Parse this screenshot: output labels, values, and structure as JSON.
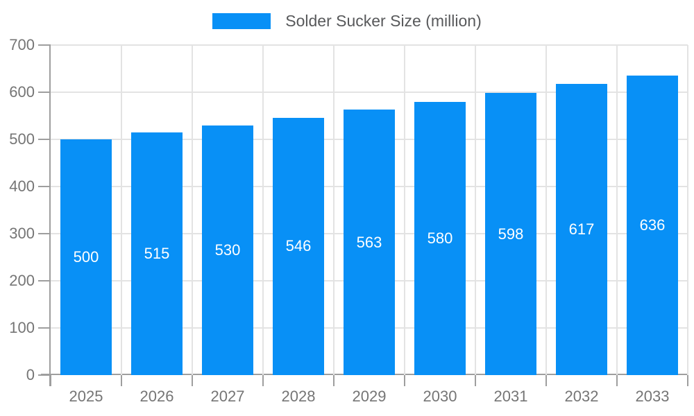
{
  "legend": {
    "label": "Solder Sucker Size (million)"
  },
  "colors": {
    "bar": "#0890f6",
    "grid": "#e3e3e3",
    "axis": "#9e9e9e",
    "axis_label": "#757575",
    "value_label": "#ffffff",
    "legend_text": "#58595b",
    "background": "#ffffff"
  },
  "chart_data": {
    "type": "bar",
    "title": "Solder Sucker Size (million)",
    "categories": [
      "2025",
      "2026",
      "2027",
      "2028",
      "2029",
      "2030",
      "2031",
      "2032",
      "2033"
    ],
    "series": [
      {
        "name": "Solder Sucker Size (million)",
        "values": [
          500,
          515,
          530,
          546,
          563,
          580,
          598,
          617,
          636
        ]
      }
    ],
    "xlabel": "",
    "ylabel": "",
    "ylim": [
      0,
      700
    ],
    "yticks": [
      0,
      100,
      200,
      300,
      400,
      500,
      600,
      700
    ],
    "grid": true,
    "legend_position": "top-center",
    "value_labels": "inside-middle"
  }
}
